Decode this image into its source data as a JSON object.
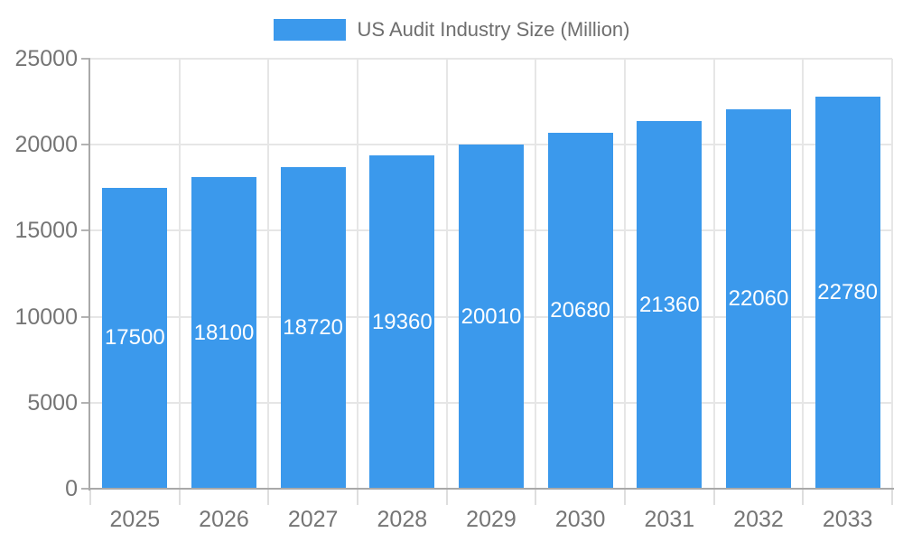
{
  "legend": {
    "label": "US Audit Industry Size (Million)"
  },
  "chart_data": {
    "type": "bar",
    "title": "US Audit Industry Size (Million)",
    "categories": [
      "2025",
      "2026",
      "2027",
      "2028",
      "2029",
      "2030",
      "2031",
      "2032",
      "2033"
    ],
    "values": [
      17500,
      18100,
      18720,
      19360,
      20010,
      20680,
      21360,
      22060,
      22780
    ],
    "xlabel": "",
    "ylabel": "",
    "ylim": [
      0,
      25000
    ],
    "yticks": [
      0,
      5000,
      10000,
      15000,
      20000,
      25000
    ],
    "grid": true,
    "legend_position": "top-center",
    "value_labels": "inside-center",
    "colors": {
      "bar": "#3b99ec",
      "bar_value_text": "#ffffff",
      "axis_line": "#a9a9a9",
      "y_tick": "#b3b3b3",
      "x_tick": "#dedede",
      "gridline": "#e6e6e6",
      "tick_text": "#757575",
      "legend_text": "#6e6e6e",
      "background": "#ffffff"
    }
  }
}
